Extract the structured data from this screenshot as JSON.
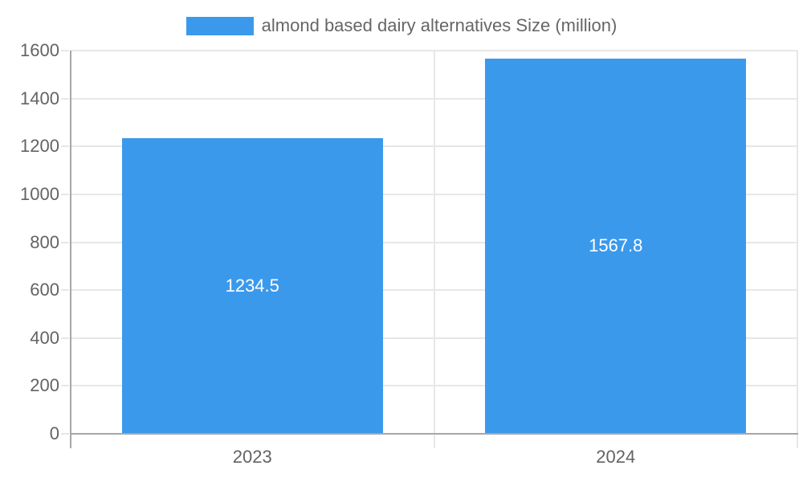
{
  "chart_data": {
    "type": "bar",
    "title": "",
    "legend_label": "almond based dairy alternatives Size (million)",
    "categories": [
      "2023",
      "2024"
    ],
    "values": [
      1234.5,
      1567.8
    ],
    "value_labels": [
      "1234.5",
      "1567.8"
    ],
    "ylim": [
      0,
      1600
    ],
    "ytick_step": 200,
    "yticks": [
      "0",
      "200",
      "400",
      "600",
      "800",
      "1000",
      "1200",
      "1400",
      "1600"
    ],
    "grid": true,
    "legend_position": "top",
    "xlabel": "",
    "ylabel": "",
    "colors": {
      "bar": "#3b99ec",
      "value_label": "#ffffff",
      "axis_line": "#a6a6a6",
      "gridline": "#e7e7e7",
      "tick_label": "#636363",
      "legend_text": "#666666",
      "background": "#ffffff"
    }
  }
}
